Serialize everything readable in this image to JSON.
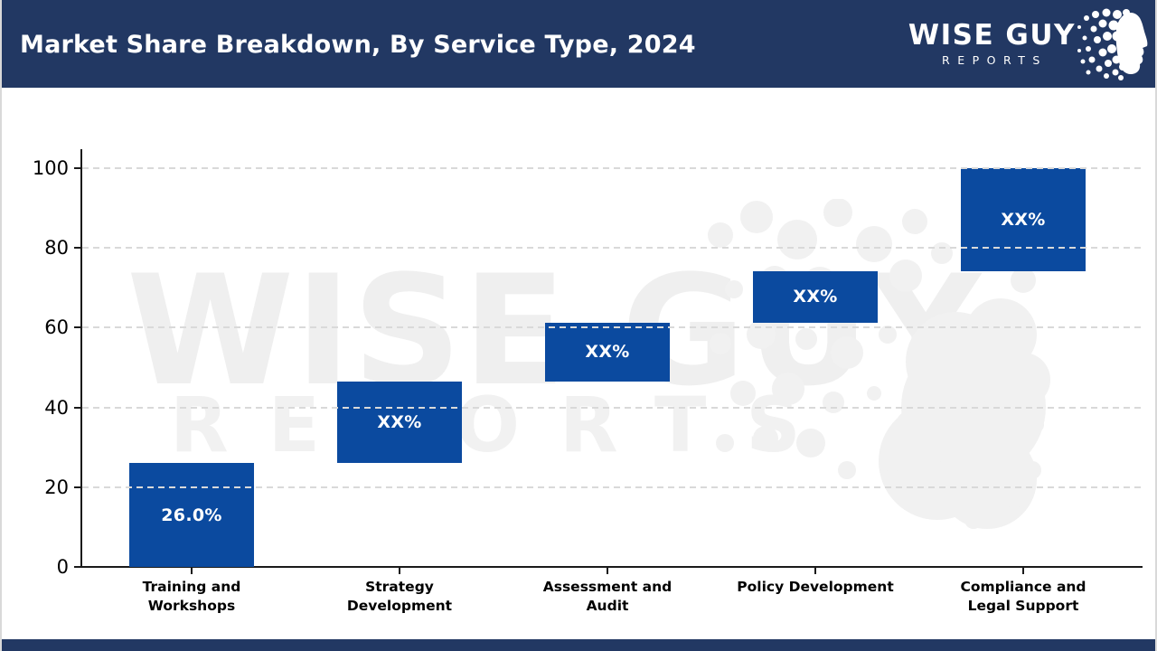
{
  "header": {
    "title": "Market Share Breakdown, By Service Type, 2024",
    "logo": {
      "name": "WISE GUY",
      "sub": "REPORTS"
    }
  },
  "watermark": {
    "name": "WISE GUY",
    "sub": "REPORTS"
  },
  "colors": {
    "header_bg": "#223863",
    "footer_bg": "#223863",
    "bar": "#0b4a9f",
    "grid": "#d9d9d9",
    "axis": "#1a1a1a",
    "bar_label": "#ffffff"
  },
  "chart_data": {
    "type": "bar",
    "subtype": "floating-waterfall",
    "title": "Market Share Breakdown, By Service Type, 2024",
    "categories": [
      "Training and Workshops",
      "Strategy Development",
      "Assessment and Audit",
      "Policy Development",
      "Compliance and Legal Support"
    ],
    "category_lines": [
      [
        "Training and",
        "Workshops"
      ],
      [
        "Strategy",
        "Development"
      ],
      [
        "Assessment and",
        "Audit"
      ],
      [
        "Policy Development"
      ],
      [
        "Compliance and",
        "Legal Support"
      ]
    ],
    "segments": [
      {
        "category": "Training and Workshops",
        "start": 0,
        "end": 26.0,
        "label": "26.0%"
      },
      {
        "category": "Strategy Development",
        "start": 26.0,
        "end": 46.5,
        "label": "XX%"
      },
      {
        "category": "Assessment and Audit",
        "start": 46.5,
        "end": 61.2,
        "label": "XX%"
      },
      {
        "category": "Policy Development",
        "start": 61.2,
        "end": 74.2,
        "label": "XX%"
      },
      {
        "category": "Compliance and Legal Support",
        "start": 74.2,
        "end": 100.0,
        "label": "XX%"
      }
    ],
    "yticks": [
      0,
      20,
      40,
      60,
      80,
      100
    ],
    "ylim": [
      0,
      105
    ],
    "xlabel": "",
    "ylabel": "",
    "grid": {
      "axis": "y",
      "style": "dashed"
    },
    "legend": null
  }
}
